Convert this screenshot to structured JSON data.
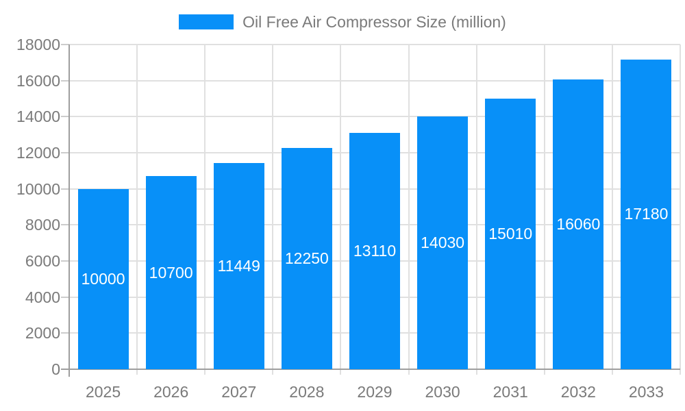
{
  "colors": {
    "bar": "#0890f8",
    "grid": "#e0e0e0",
    "axis": "#9e9e9e",
    "tick": "#cccccc",
    "text": "#7a7a7a",
    "bar_label": "#ffffff",
    "background": "#ffffff"
  },
  "chart_data": {
    "type": "bar",
    "title": "Oil Free Air Compressor Size (million)",
    "categories": [
      "2025",
      "2026",
      "2027",
      "2028",
      "2029",
      "2030",
      "2031",
      "2032",
      "2033"
    ],
    "values": [
      10000,
      10700,
      11449,
      12250,
      13110,
      14030,
      15010,
      16060,
      17180
    ],
    "xlabel": "",
    "ylabel": "",
    "ylim": [
      0,
      18000
    ],
    "ytick_step": 2000,
    "grid": true,
    "legend_position": "top-center",
    "bar_labels": "inside-centered"
  }
}
